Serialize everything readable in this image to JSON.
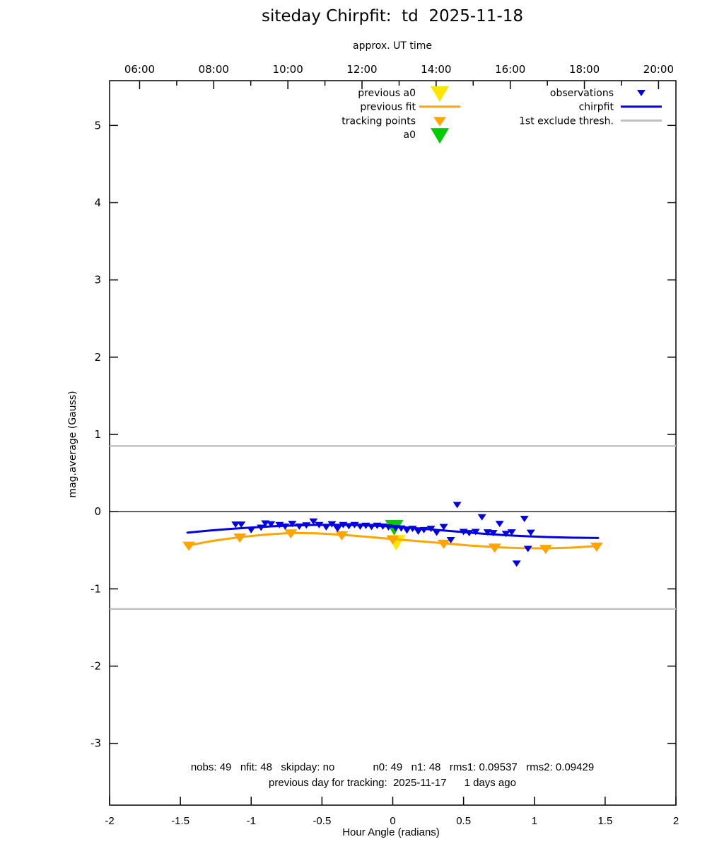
{
  "title": "siteday Chirpfit:  td  2025-11-18",
  "colors": {
    "observations": "#0000e0",
    "chirpfit": "#0000e0",
    "previous_fit": "#ffa500",
    "tracking_points": "#ffa500",
    "previous_a0": "#ffe600",
    "a0": "#00cc00",
    "exclude_threshold": "#c0c0c0",
    "frame": "#000000"
  },
  "chart_data": {
    "type": "scatter",
    "title": "siteday Chirpfit:  td  2025-11-18",
    "top_axis": {
      "label": "approx. UT time",
      "ticks": [
        {
          "label": "06:00",
          "ha": -1.788
        },
        {
          "label": "08:00",
          "ha": -1.2644
        },
        {
          "label": "10:00",
          "ha": -0.7408
        },
        {
          "label": "12:00",
          "ha": -0.2172
        },
        {
          "label": "14:00",
          "ha": 0.3064
        },
        {
          "label": "16:00",
          "ha": 0.83
        },
        {
          "label": "18:00",
          "ha": 1.3536
        },
        {
          "label": "20:00",
          "ha": 1.8772
        }
      ],
      "minor_ha": [
        -1.526,
        -1.003,
        -0.479,
        0.045,
        0.568,
        1.092,
        1.616
      ]
    },
    "x_axis": {
      "label": "Hour Angle (radians)",
      "min": -2,
      "max": 2,
      "tick_values": [
        -2,
        -1.5,
        -1,
        -0.5,
        0,
        0.5,
        1,
        1.5,
        2
      ],
      "tick_labels": [
        "-2",
        "-1.5",
        "-1",
        "-0.5",
        "0",
        "0.5",
        "1",
        "1.5",
        "2"
      ]
    },
    "y_axis": {
      "label": "mag.average (Gauss)",
      "min": -3.8,
      "max": 5.58,
      "tick_values": [
        -3,
        -2,
        -1,
        0,
        1,
        2,
        3,
        4,
        5
      ],
      "tick_labels": [
        "-3",
        "-2",
        "-1",
        "0",
        "1",
        "2",
        "3",
        "4",
        "5"
      ]
    },
    "zero_line": 0,
    "series": {
      "observations": {
        "name": "observations",
        "points": [
          [
            -1.11,
            -0.165
          ],
          [
            -1.07,
            -0.165
          ],
          [
            -1.0,
            -0.235
          ],
          [
            -0.93,
            -0.205
          ],
          [
            -0.9,
            -0.15
          ],
          [
            -0.86,
            -0.16
          ],
          [
            -0.8,
            -0.17
          ],
          [
            -0.76,
            -0.19
          ],
          [
            -0.71,
            -0.155
          ],
          [
            -0.66,
            -0.19
          ],
          [
            -0.61,
            -0.175
          ],
          [
            -0.56,
            -0.125
          ],
          [
            -0.52,
            -0.17
          ],
          [
            -0.47,
            -0.2
          ],
          [
            -0.43,
            -0.16
          ],
          [
            -0.39,
            -0.22
          ],
          [
            -0.35,
            -0.17
          ],
          [
            -0.31,
            -0.185
          ],
          [
            -0.27,
            -0.17
          ],
          [
            -0.23,
            -0.19
          ],
          [
            -0.19,
            -0.18
          ],
          [
            -0.15,
            -0.195
          ],
          [
            -0.11,
            -0.18
          ],
          [
            -0.07,
            -0.19
          ],
          [
            -0.03,
            -0.2
          ],
          [
            0.02,
            -0.21
          ],
          [
            0.06,
            -0.215
          ],
          [
            0.1,
            -0.24
          ],
          [
            0.14,
            -0.22
          ],
          [
            0.18,
            -0.255
          ],
          [
            0.22,
            -0.235
          ],
          [
            0.27,
            -0.22
          ],
          [
            0.31,
            -0.27
          ],
          [
            0.36,
            -0.195
          ],
          [
            0.41,
            -0.365
          ],
          [
            0.455,
            0.09
          ],
          [
            0.5,
            -0.26
          ],
          [
            0.54,
            -0.275
          ],
          [
            0.585,
            -0.26
          ],
          [
            0.63,
            -0.07
          ],
          [
            0.67,
            -0.265
          ],
          [
            0.71,
            -0.275
          ],
          [
            0.755,
            -0.155
          ],
          [
            0.8,
            -0.285
          ],
          [
            0.84,
            -0.265
          ],
          [
            0.875,
            -0.67
          ],
          [
            0.93,
            -0.09
          ],
          [
            0.955,
            -0.48
          ],
          [
            0.975,
            -0.27
          ]
        ]
      },
      "chirpfit": {
        "name": "chirpfit",
        "points": [
          [
            -1.45,
            -0.272
          ],
          [
            -1.3,
            -0.246
          ],
          [
            -1.15,
            -0.224
          ],
          [
            -1.0,
            -0.206
          ],
          [
            -0.85,
            -0.19
          ],
          [
            -0.7,
            -0.179
          ],
          [
            -0.55,
            -0.172
          ],
          [
            -0.4,
            -0.17
          ],
          [
            -0.25,
            -0.174
          ],
          [
            -0.1,
            -0.184
          ],
          [
            0.05,
            -0.199
          ],
          [
            0.2,
            -0.219
          ],
          [
            0.35,
            -0.242
          ],
          [
            0.5,
            -0.265
          ],
          [
            0.65,
            -0.287
          ],
          [
            0.8,
            -0.305
          ],
          [
            0.95,
            -0.319
          ],
          [
            1.1,
            -0.329
          ],
          [
            1.25,
            -0.336
          ],
          [
            1.45,
            -0.341
          ]
        ]
      },
      "previous_fit": {
        "name": "previous fit",
        "points": [
          [
            -1.44,
            -0.435
          ],
          [
            -1.26,
            -0.375
          ],
          [
            -1.08,
            -0.33
          ],
          [
            -0.9,
            -0.297
          ],
          [
            -0.72,
            -0.276
          ],
          [
            -0.54,
            -0.28
          ],
          [
            -0.36,
            -0.3
          ],
          [
            -0.18,
            -0.326
          ],
          [
            0.0,
            -0.355
          ],
          [
            0.18,
            -0.382
          ],
          [
            0.36,
            -0.41
          ],
          [
            0.54,
            -0.438
          ],
          [
            0.72,
            -0.46
          ],
          [
            0.9,
            -0.472
          ],
          [
            1.08,
            -0.476
          ],
          [
            1.26,
            -0.466
          ],
          [
            1.44,
            -0.446
          ]
        ]
      },
      "tracking_points": {
        "name": "tracking points",
        "points": [
          [
            -1.44,
            -0.435
          ],
          [
            -1.08,
            -0.33
          ],
          [
            -0.72,
            -0.276
          ],
          [
            -0.36,
            -0.3
          ],
          [
            0.0,
            -0.355
          ],
          [
            0.36,
            -0.41
          ],
          [
            0.72,
            -0.46
          ],
          [
            1.08,
            -0.476
          ],
          [
            1.44,
            -0.446
          ]
        ]
      },
      "a0": {
        "name": "a0",
        "point": [
          0.01,
          -0.19
        ]
      },
      "previous_a0": {
        "name": "previous a0",
        "point": [
          0.025,
          -0.385
        ]
      },
      "exclude_thresholds": {
        "name": "1st exclude thresh.",
        "values": [
          0.85,
          -1.26
        ]
      }
    },
    "legend": {
      "left": [
        {
          "label": "previous a0",
          "symbol": "triangle-large",
          "color_key": "previous_a0"
        },
        {
          "label": "previous fit",
          "symbol": "line",
          "color_key": "previous_fit"
        },
        {
          "label": "tracking points",
          "symbol": "triangle-medium",
          "color_key": "tracking_points"
        },
        {
          "label": "a0",
          "symbol": "triangle-large",
          "color_key": "a0"
        }
      ],
      "right": [
        {
          "label": "observations",
          "symbol": "triangle-small",
          "color_key": "observations"
        },
        {
          "label": "chirpfit",
          "symbol": "line",
          "color_key": "chirpfit"
        },
        {
          "label": "1st exclude thresh.",
          "symbol": "line",
          "color_key": "exclude_threshold"
        }
      ]
    },
    "stats": {
      "line1": "nobs: 49   nfit: 48   skipday: no             n0: 49   n1: 48   rms1: 0.09537   rms2: 0.09429",
      "line2": "previous day for tracking:  2025-11-17      1 days ago"
    }
  }
}
